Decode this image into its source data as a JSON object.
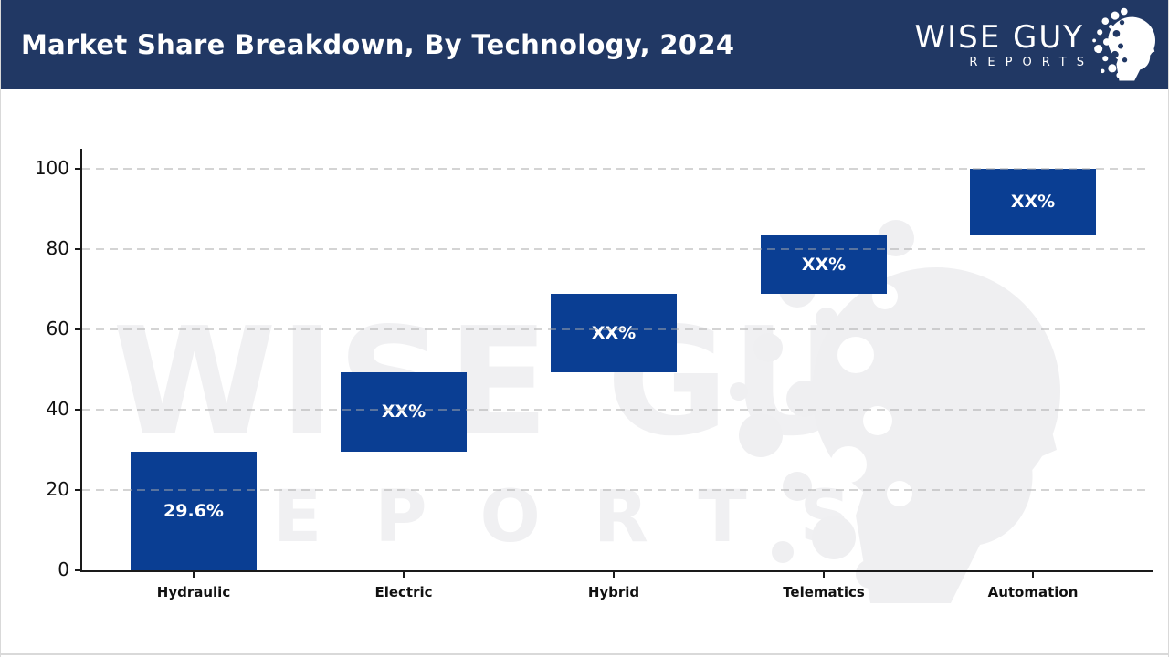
{
  "header": {
    "title": "Market Share Breakdown, By Technology, 2024",
    "logo": {
      "line1": "WISE GUY",
      "line2": "REPORTS"
    }
  },
  "watermark": {
    "line1": "WISE GUY",
    "line2": "REPORTS"
  },
  "colors": {
    "header_bg": "#213864",
    "bar_fill": "#0a3e93",
    "bar_label_text": "#ffffff",
    "gridline": "#e3e3e3",
    "axis": "#1a1a1a",
    "watermark": "#f0f0f2",
    "border": "#d9d9d9"
  },
  "chart_data": {
    "type": "bar",
    "subtype": "waterfall",
    "title": "Market Share Breakdown, By Technology, 2024",
    "xlabel": "",
    "ylabel": "",
    "categories": [
      "Hydraulic",
      "Electric",
      "Hybrid",
      "Telematics",
      "Automation"
    ],
    "segments": [
      {
        "category": "Hydraulic",
        "start": 0,
        "end": 29.6,
        "label": "29.6%"
      },
      {
        "category": "Electric",
        "start": 29.6,
        "end": 49.3,
        "label": "XX%"
      },
      {
        "category": "Hybrid",
        "start": 49.3,
        "end": 68.9,
        "label": "XX%"
      },
      {
        "category": "Telematics",
        "start": 68.9,
        "end": 83.5,
        "label": "XX%"
      },
      {
        "category": "Automation",
        "start": 83.5,
        "end": 100,
        "label": "XX%"
      }
    ],
    "y_ticks": [
      0,
      20,
      40,
      60,
      80,
      100
    ],
    "ylim": [
      0,
      105
    ],
    "grid": "horizontal dashed, drawn above bars",
    "legend": "none"
  }
}
